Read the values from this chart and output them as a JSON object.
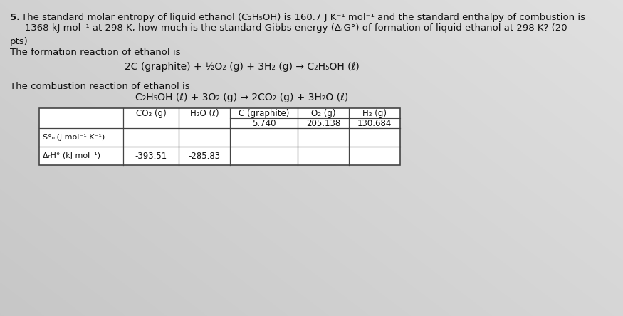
{
  "background_color": "#d0d0d0",
  "question_number": "5.",
  "line1": "The standard molar entropy of liquid ethanol (C₂H₅OH) is 160.7 J K⁻¹ mol⁻¹ and the standard enthalpy of combustion is",
  "line2": "-1368 kJ mol⁻¹ at 298 K, how much is the standard Gibbs energy (ΔᵣG°) of formation of liquid ethanol at 298 K? (20",
  "line3": "pts)",
  "line4": "The formation reaction of ethanol is",
  "formation_eq": "2C (graphite) + ½O₂ (g) + 3H₂ (g) → C₂H₅OH (ℓ)",
  "combustion_label": "The combustion reaction of ethanol is",
  "combustion_eq": "C₂H₅OH (ℓ) + 3O₂ (g) → 2CO₂ (g) + 3H₂O (ℓ)",
  "table_col0_header": "",
  "table_col1_header": "CO₂ (g)",
  "table_col2_header": "H₂O (ℓ)",
  "table_col3_header": "C (graphite)",
  "table_col4_header": "O₂ (g)",
  "table_col5_header": "H₂ (g)",
  "row0_label": "",
  "row0_data": [
    "",
    "",
    "5.740",
    "205.138",
    "130.684"
  ],
  "row1_label": "S°ₘ(J mol⁻¹ K⁻¹)",
  "row1_data": [
    "",
    "",
    "",
    "",
    ""
  ],
  "row2_label": "ΔᵣH° (kJ mol⁻¹)",
  "row2_data": [
    "-393.51",
    "-285.83",
    "",
    "",
    ""
  ],
  "font_size_main": 9.5,
  "font_size_eq": 10,
  "font_size_table": 8.5,
  "text_color": "#111111"
}
